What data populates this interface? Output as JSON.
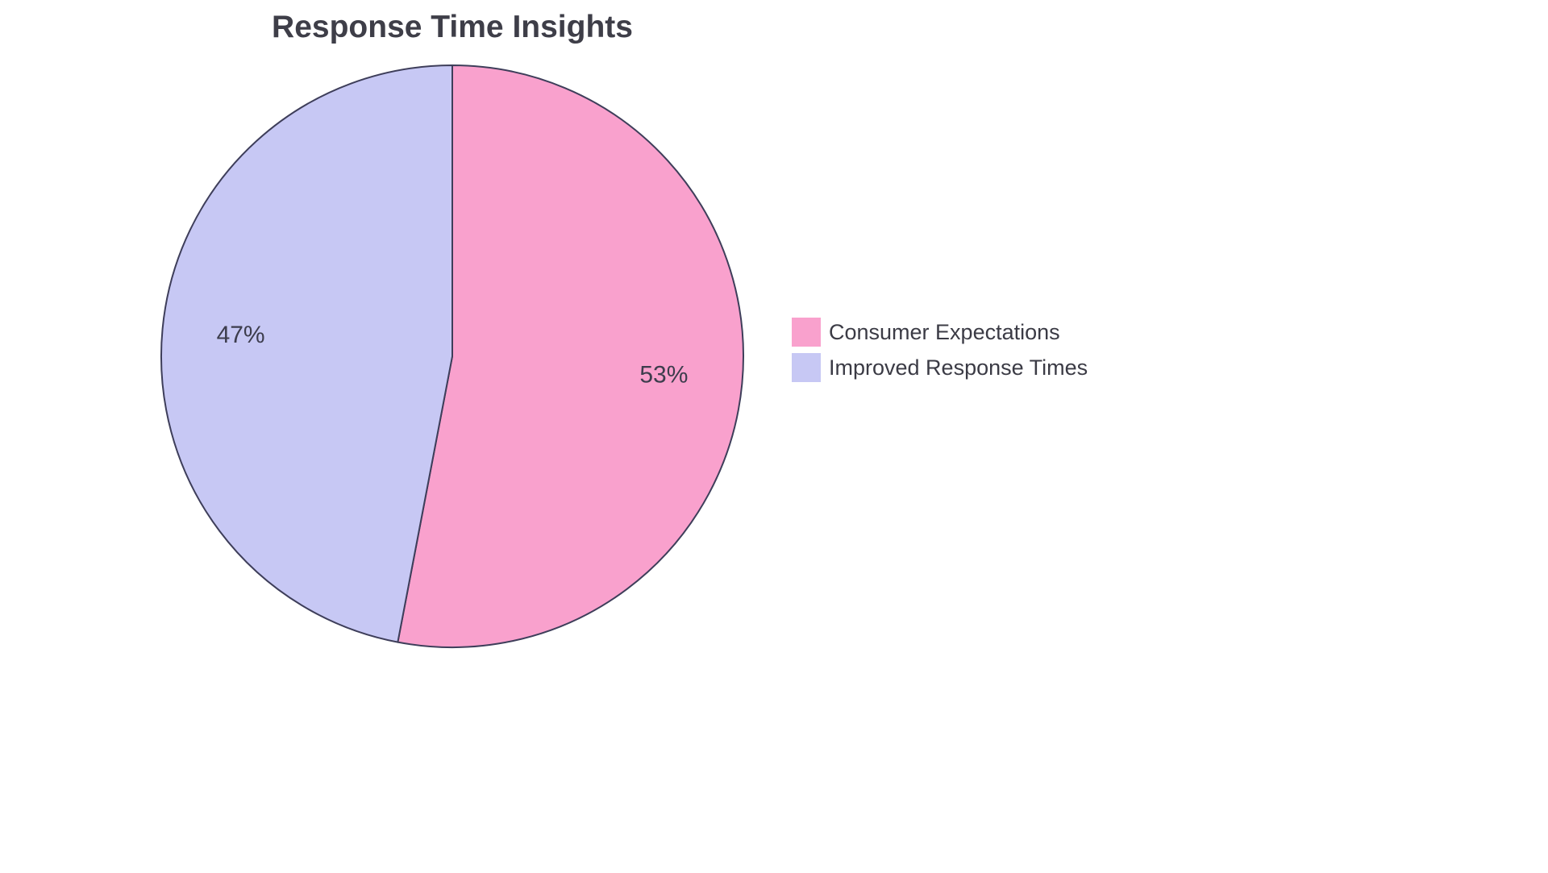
{
  "page": {
    "background_color": "#ffffff"
  },
  "chart_data": {
    "type": "pie",
    "title": "Response Time Insights",
    "legend_position": "right",
    "start_angle_deg": 0,
    "direction": "clockwise",
    "stroke_color": "#3e3e5a",
    "percent_label_color": "#3d3d4d",
    "slices": [
      {
        "label": "Consumer Expectations",
        "value": 53,
        "percent_label": "53%",
        "color": "#f9a1cd"
      },
      {
        "label": "Improved Response Times",
        "value": 47,
        "percent_label": "47%",
        "color": "#c7c8f4"
      }
    ]
  }
}
